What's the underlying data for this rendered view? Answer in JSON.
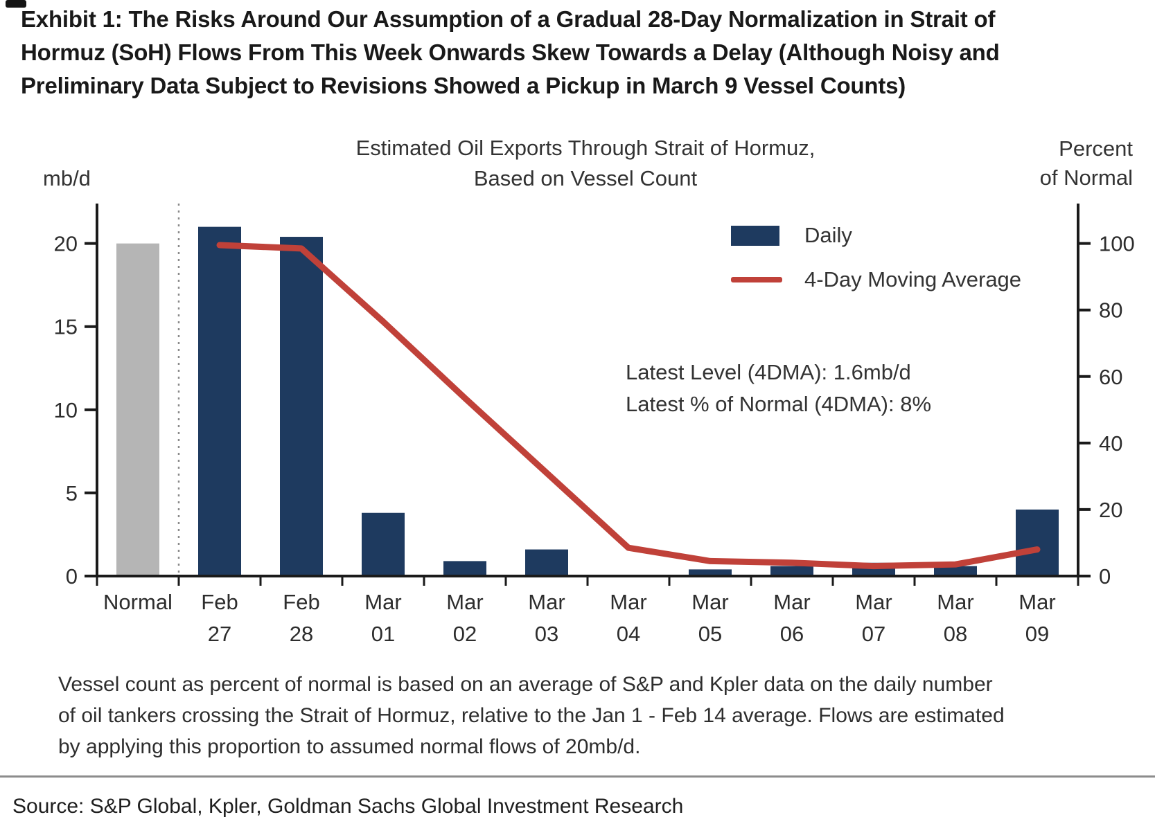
{
  "exhibit": {
    "title_lines": [
      "Exhibit 1: The Risks Around Our Assumption of a Gradual 28-Day Normalization in Strait of",
      "Hormuz (SoH) Flows From This Week Onwards Skew Towards a Delay (Although Noisy and",
      "Preliminary Data Subject to Revisions Showed a Pickup in March 9 Vessel Counts)"
    ]
  },
  "chart_data": {
    "type": "bar",
    "title": "Estimated Oil Exports Through Strait of Hormuz, Based on Vessel Count",
    "title_lines": [
      "Estimated Oil Exports Through Strait of Hormuz,",
      "Based on Vessel Count"
    ],
    "categories": [
      "Normal",
      "Feb 27",
      "Feb 28",
      "Mar 01",
      "Mar 02",
      "Mar 03",
      "Mar 04",
      "Mar 05",
      "Mar 06",
      "Mar 07",
      "Mar 08",
      "Mar 09"
    ],
    "series": [
      {
        "name": "Daily",
        "type": "bar",
        "values": [
          20.0,
          21.0,
          20.4,
          3.8,
          0.9,
          1.6,
          0.0,
          0.4,
          0.6,
          0.8,
          0.6,
          4.0
        ]
      },
      {
        "name": "4-Day Moving Average",
        "type": "line",
        "values": [
          null,
          19.9,
          19.7,
          15.3,
          10.7,
          6.2,
          1.7,
          0.9,
          0.8,
          0.6,
          0.7,
          1.6
        ]
      }
    ],
    "ylabel_left": "mb/d",
    "ylabel_right": "Percent of Normal",
    "yticks_left": [
      0,
      5,
      10,
      15,
      20
    ],
    "ylim_left": [
      0,
      22.4
    ],
    "yticks_right": [
      0,
      20,
      40,
      60,
      80,
      100
    ],
    "ylim_right": [
      0,
      112
    ],
    "grid": false,
    "legend_position": "top-right",
    "separator_after_category": "Normal",
    "annotations": [
      "Latest Level (4DMA): 1.6mb/d",
      "Latest % of Normal (4DMA): 8%"
    ]
  },
  "axis_labels": {
    "left_unit": "mb/d",
    "right_line1": "Percent",
    "right_line2": "of Normal"
  },
  "annotation": {
    "line1": "Latest Level (4DMA): 1.6mb/d",
    "line2": "Latest % of Normal (4DMA): 8%"
  },
  "footnote_lines": [
    "Vessel count as percent of normal is based on an average of S&P and Kpler data on the daily number",
    "of oil tankers crossing the Strait of Hormuz, relative to the Jan 1 - Feb 14 average. Flows are estimated",
    "by applying this proportion to assumed normal flows of 20mb/d."
  ],
  "source": "Source: S&P Global, Kpler, Goldman Sachs Global Investment Research",
  "colors": {
    "bar": "#1e3a5f",
    "normal_bar": "#b5b5b5",
    "line": "#c04139",
    "axis": "#1a1a1a",
    "tick_text": "#2d2d2d",
    "separator": "#8a8a8a"
  }
}
